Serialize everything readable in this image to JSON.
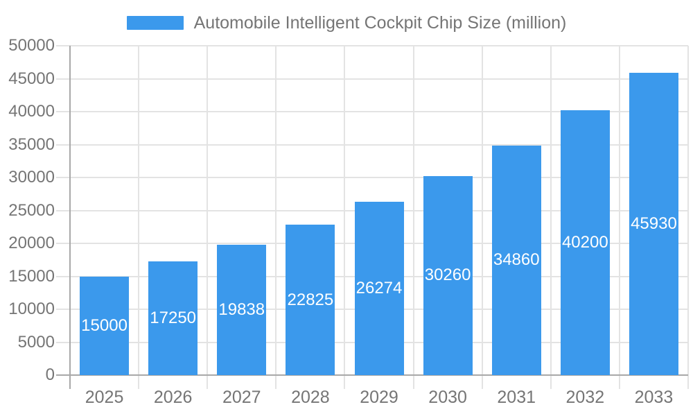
{
  "legend": {
    "label": "Automobile Intelligent Cockpit Chip Size (million)",
    "swatch_color": "#3B99EC"
  },
  "chart_data": {
    "type": "bar",
    "title": "Automobile Intelligent Cockpit Chip Size (million)",
    "categories": [
      "2025",
      "2026",
      "2027",
      "2028",
      "2029",
      "2030",
      "2031",
      "2032",
      "2033"
    ],
    "values": [
      15000,
      17250,
      19838,
      22825,
      26274,
      30260,
      34860,
      40200,
      45930
    ],
    "xlabel": "",
    "ylabel": "",
    "ylim": [
      0,
      50000
    ],
    "ytick_step": 5000,
    "ytick_labels": [
      "0",
      "5000",
      "10000",
      "15000",
      "20000",
      "25000",
      "30000",
      "35000",
      "40000",
      "45000",
      "50000"
    ],
    "grid": true,
    "legend_position": "top",
    "bar_value_labels_inside": true,
    "colors": {
      "bar": "#3B99EC",
      "bar_label_text": "#FFFFFF",
      "axis_line": "#A8A8A8",
      "gridline": "#E3E3E3",
      "tick_label": "#757575",
      "legend_text": "#757575"
    }
  }
}
